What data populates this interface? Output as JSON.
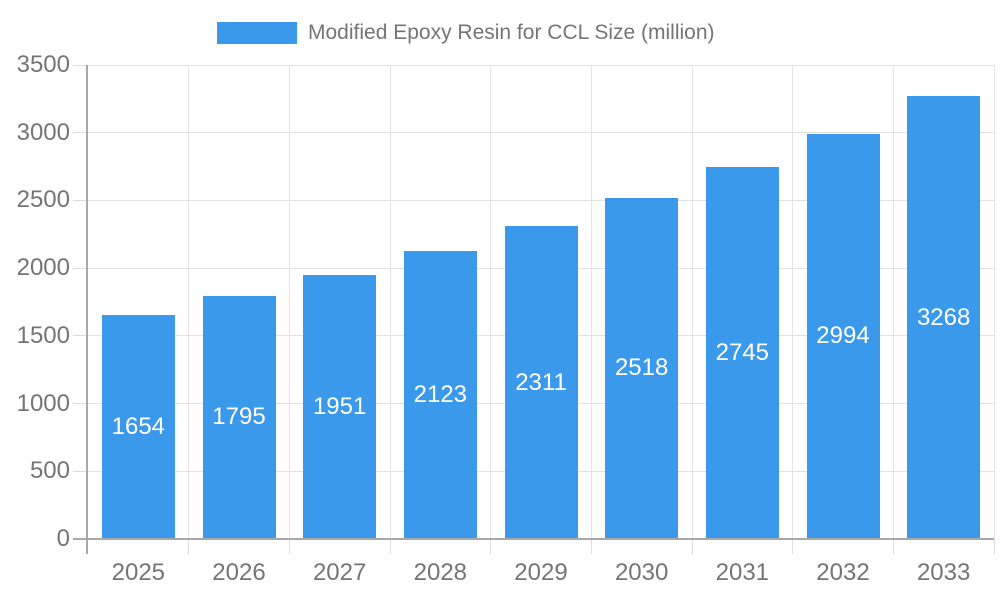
{
  "legend": {
    "label": "Modified Epoxy Resin for CCL Size (million)"
  },
  "chart_data": {
    "type": "bar",
    "title": "Modified Epoxy Resin for CCL Size (million)",
    "categories": [
      "2025",
      "2026",
      "2027",
      "2028",
      "2029",
      "2030",
      "2031",
      "2032",
      "2033"
    ],
    "series": [
      {
        "name": "Modified Epoxy Resin for CCL Size (million)",
        "color": "#3B99EC",
        "values": [
          1654,
          1795,
          1951,
          2123,
          2311,
          2518,
          2745,
          2994,
          3268
        ]
      }
    ],
    "xlabel": "",
    "ylabel": "",
    "ylim": [
      0,
      3500
    ],
    "yticks": [
      0,
      500,
      1000,
      1500,
      2000,
      2500,
      3000,
      3500
    ],
    "grid": true,
    "legend_position": "top",
    "value_labels": "inside-center",
    "value_label_color": "#ffffff",
    "axis_label_color": "#757575",
    "gridline_color": "#e3e3e3",
    "tick_color": "#dcdcdc",
    "axis_line_color": "#a8a8a8",
    "background": "#ffffff"
  }
}
